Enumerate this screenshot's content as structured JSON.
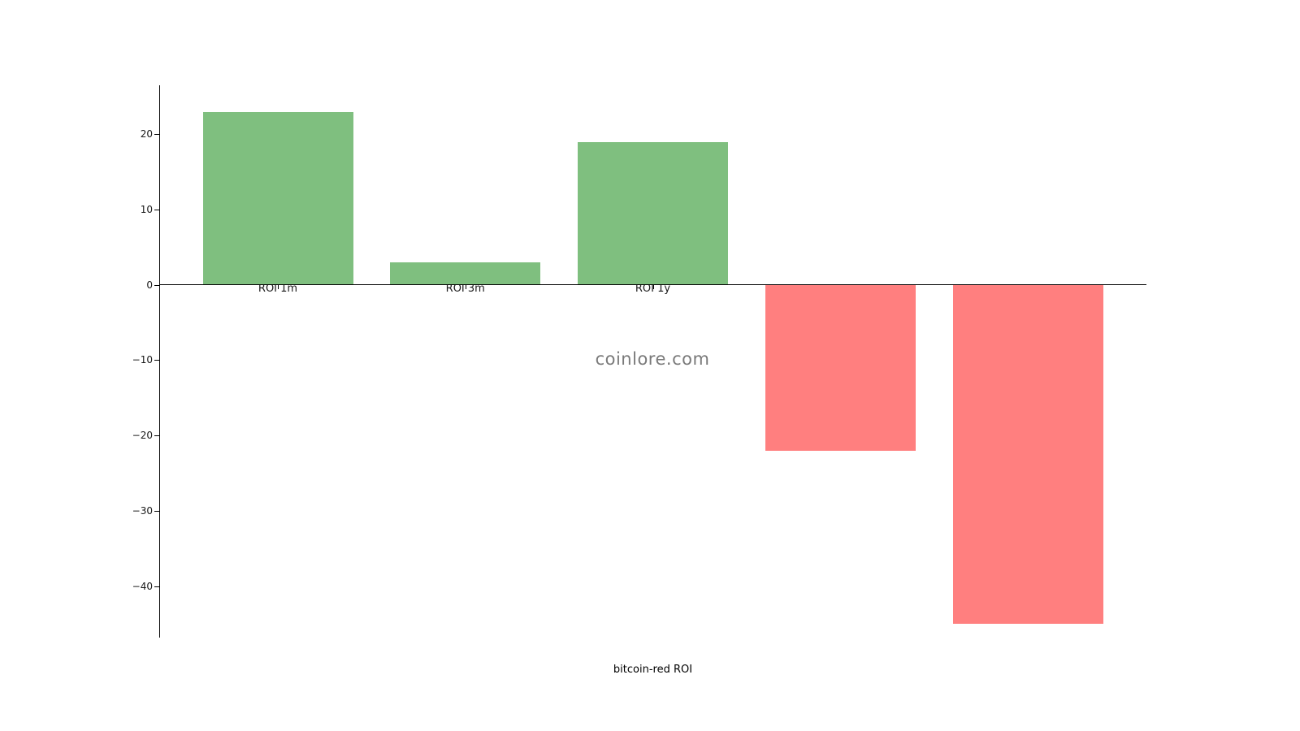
{
  "chart_data": {
    "type": "bar",
    "title": "bitcoin-red ROI",
    "title_position": "bottom-center",
    "watermark": "coinlore.com",
    "categories": [
      "ROI 1m",
      "ROI 3m",
      "ROI 1y",
      "",
      ""
    ],
    "values": [
      23,
      3,
      19,
      -22,
      -45
    ],
    "bar_color_positive": "#7fbf7f",
    "bar_color_negative": "#ff7f7f",
    "axis_color": "#000000",
    "tick_text_color": "#1a1a1a",
    "watermark_color": "#7a7a7a",
    "title_color": "#000000",
    "yticks": [
      20,
      10,
      0,
      -10,
      -20,
      -30,
      -40
    ],
    "ylim": [
      -46.8,
      26.5
    ],
    "xlabel": "",
    "ylabel": "",
    "legend_position": "none",
    "grid": false
  }
}
